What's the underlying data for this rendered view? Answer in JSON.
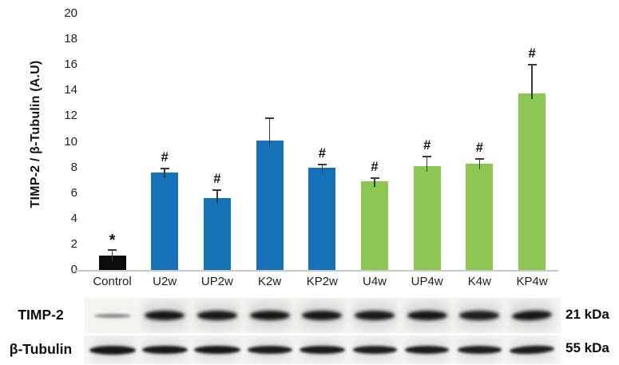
{
  "chart_data": {
    "type": "bar",
    "title": "",
    "ylabel": "TIMP-2 / β-Tubulin (A.U)",
    "xlabel": "",
    "ylim": [
      0,
      20
    ],
    "ytick_step": 2,
    "yticks": [
      0,
      2,
      4,
      6,
      8,
      10,
      12,
      14,
      16,
      18,
      20
    ],
    "categories": [
      "Control",
      "U2w",
      "UP2w",
      "K2w",
      "KP2w",
      "U4w",
      "UP4w",
      "K4w",
      "KP4w"
    ],
    "values": [
      1.1,
      7.6,
      5.6,
      10.1,
      8.0,
      6.9,
      8.1,
      8.3,
      13.8
    ],
    "errors": [
      0.5,
      0.4,
      0.7,
      1.8,
      0.3,
      0.3,
      0.8,
      0.4,
      2.3
    ],
    "annotations": [
      "*",
      "#",
      "#",
      "",
      "#",
      "#",
      "#",
      "#",
      "#"
    ],
    "bar_colors": [
      "#0b0b0b",
      "#1572b9",
      "#1572b9",
      "#1572b9",
      "#1572b9",
      "#8cc653",
      "#8cc653",
      "#8cc653",
      "#8cc653"
    ],
    "group_colors": {
      "control": "#0b0b0b",
      "week2_blue": "#1572b9",
      "week4_green": "#8cc653"
    },
    "error_bar_color": "#3a3a3a",
    "axis_color": "#c8c8c8",
    "grid": false,
    "legend": "none"
  },
  "blots": {
    "lanes": [
      "Control",
      "U2w",
      "UP2w",
      "K2w",
      "KP2w",
      "U4w",
      "UP4w",
      "K4w",
      "KP4w"
    ],
    "rows": [
      {
        "label": "TIMP-2",
        "molecular_weight": "21 kDa",
        "band_intensities": [
          0.4,
          1.0,
          0.95,
          1.0,
          1.0,
          0.9,
          1.0,
          0.8,
          1.0
        ]
      },
      {
        "label": "β-Tubulin",
        "molecular_weight": "55 kDa",
        "band_intensities": [
          1.0,
          0.95,
          0.95,
          0.85,
          0.9,
          0.75,
          0.8,
          0.7,
          0.8
        ]
      }
    ]
  }
}
